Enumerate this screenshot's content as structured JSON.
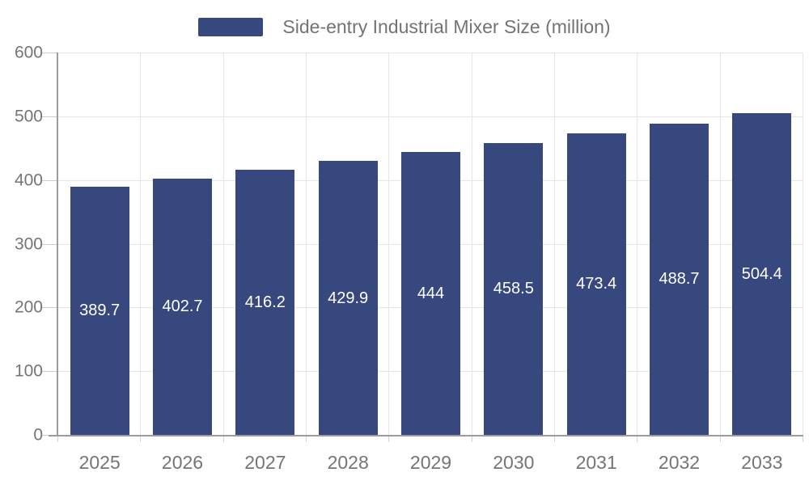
{
  "legend": {
    "label": "Side-entry Industrial Mixer Size (million)"
  },
  "chart_data": {
    "type": "bar",
    "title": "",
    "legend_entries": [
      "Side-entry Industrial Mixer Size (million)"
    ],
    "legend_position": "top",
    "categories": [
      "2025",
      "2026",
      "2027",
      "2028",
      "2029",
      "2030",
      "2031",
      "2032",
      "2033"
    ],
    "values": [
      389.7,
      402.7,
      416.2,
      429.9,
      444,
      458.5,
      473.4,
      488.7,
      504.4
    ],
    "value_labels": [
      "389.7",
      "402.7",
      "416.2",
      "429.9",
      "444",
      "458.5",
      "473.4",
      "488.7",
      "504.4"
    ],
    "xlabel": "",
    "ylabel": "",
    "ylim": [
      0,
      600
    ],
    "yticks": [
      0,
      100,
      200,
      300,
      400,
      500,
      600
    ],
    "grid": true,
    "colors": {
      "bar": "#36487E",
      "bar_value_text": "#ffffff",
      "axis_text": "#757575",
      "legend_text": "#737373",
      "gridline": "#e6e6e6",
      "axis_line": "#9c9c9c",
      "tick": "#cccccc",
      "background": "#ffffff"
    }
  }
}
